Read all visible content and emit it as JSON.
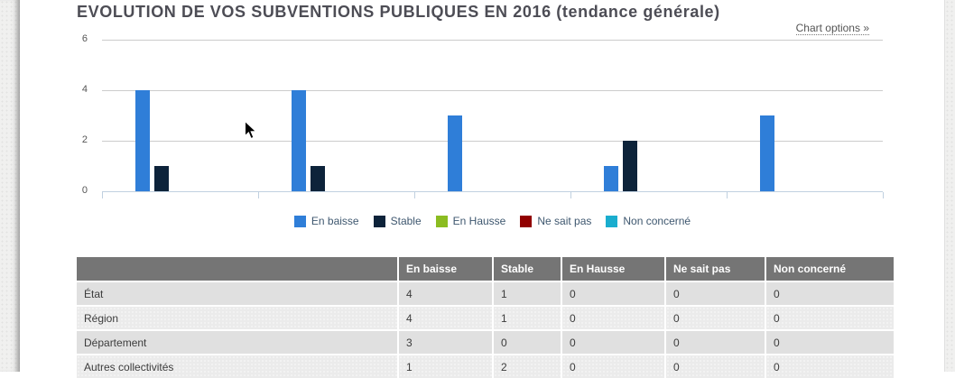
{
  "page": {
    "title": "EVOLUTION DE VOS SUBVENTIONS PUBLIQUES EN 2016 (tendance générale)",
    "chart_options_link": "Chart options »"
  },
  "chart_data": {
    "type": "bar",
    "title": "EVOLUTION DE VOS SUBVENTIONS PUBLIQUES EN 2016 (tendance générale)",
    "categories": [
      "État",
      "Région",
      "Département",
      "Autres collectivités",
      ""
    ],
    "series": [
      {
        "name": "En baisse",
        "color": "#2f7ed8",
        "values": [
          4,
          4,
          3,
          1,
          3
        ]
      },
      {
        "name": "Stable",
        "color": "#0d233a",
        "values": [
          1,
          1,
          0,
          2,
          0
        ]
      },
      {
        "name": "En Hausse",
        "color": "#8bbc21",
        "values": [
          0,
          0,
          0,
          0,
          0
        ]
      },
      {
        "name": "Ne sait pas",
        "color": "#910000",
        "values": [
          0,
          0,
          0,
          0,
          0
        ]
      },
      {
        "name": "Non concerné",
        "color": "#1aadce",
        "values": [
          0,
          0,
          0,
          0,
          0
        ]
      }
    ],
    "xlabel": "",
    "ylabel": "",
    "ylim": [
      0,
      6
    ],
    "yticks": [
      0,
      2,
      4,
      6
    ],
    "grid": true,
    "legend_position": "bottom",
    "gridline_color": "#cccccc",
    "axis_color": "#c0d0e0"
  },
  "table": {
    "headers": [
      "",
      "En baisse",
      "Stable",
      "En Hausse",
      "Ne sait pas",
      "Non concerné"
    ],
    "rows": [
      {
        "label": "État",
        "values": [
          "4",
          "1",
          "0",
          "0",
          "0"
        ]
      },
      {
        "label": "Région",
        "values": [
          "4",
          "1",
          "0",
          "0",
          "0"
        ]
      },
      {
        "label": "Département",
        "values": [
          "3",
          "0",
          "0",
          "0",
          "0"
        ]
      },
      {
        "label": "Autres collectivités",
        "values": [
          "1",
          "2",
          "0",
          "0",
          "0"
        ]
      }
    ]
  }
}
